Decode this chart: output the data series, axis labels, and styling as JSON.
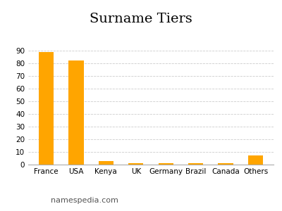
{
  "title": "Surname Tiers",
  "categories": [
    "France",
    "USA",
    "Kenya",
    "UK",
    "Germany",
    "Brazil",
    "Canada",
    "Others"
  ],
  "values": [
    89,
    82,
    3,
    1,
    1,
    1,
    1,
    7
  ],
  "bar_color": "#FFA500",
  "ylim": [
    0,
    100
  ],
  "yticks": [
    0,
    10,
    20,
    30,
    40,
    50,
    60,
    70,
    80,
    90
  ],
  "grid_color": "#cccccc",
  "background_color": "#ffffff",
  "footer_text": "namespedia.com",
  "title_fontsize": 14,
  "tick_fontsize": 7.5,
  "footer_fontsize": 8,
  "bar_width": 0.5
}
